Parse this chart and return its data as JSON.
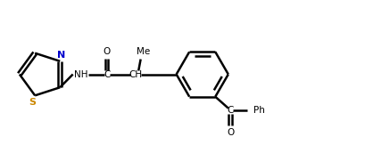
{
  "background": "#ffffff",
  "line_color": "#000000",
  "N_color": "#0000cc",
  "S_color": "#cc8800",
  "fig_width": 4.09,
  "fig_height": 1.63,
  "dpi": 100,
  "xlim": [
    0,
    10
  ],
  "ylim": [
    0,
    4
  ]
}
